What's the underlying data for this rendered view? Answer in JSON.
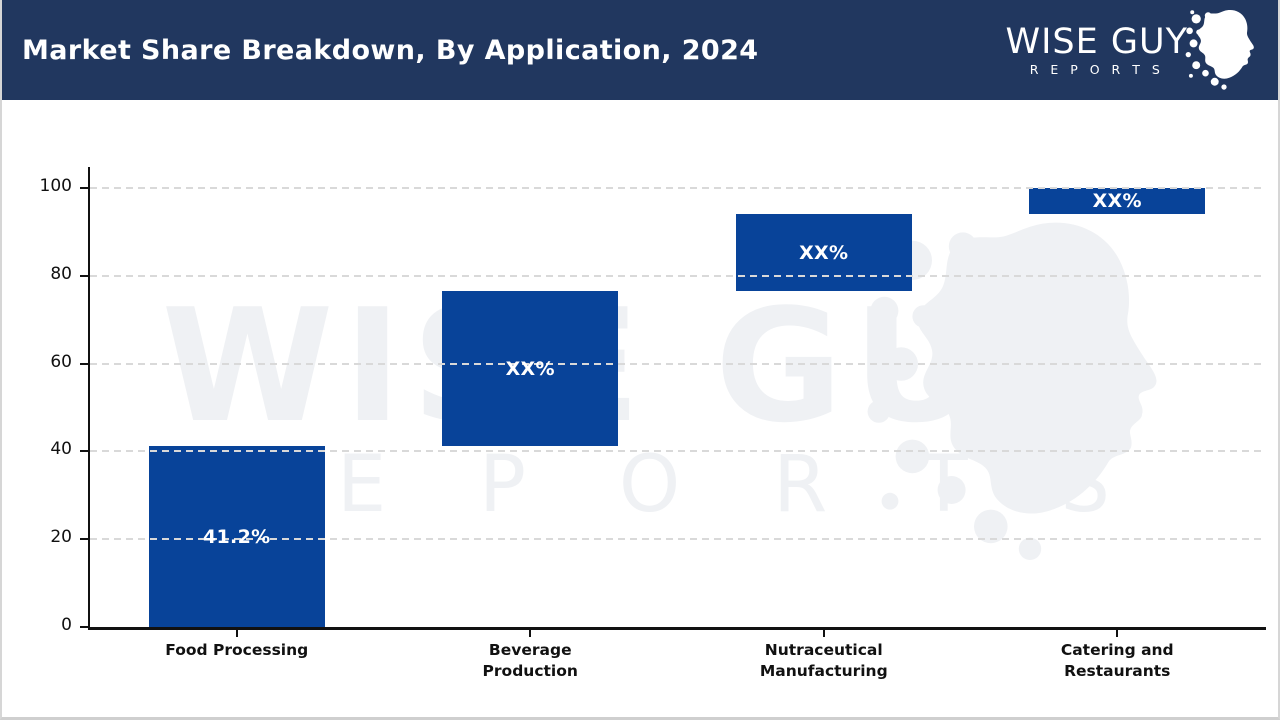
{
  "header": {
    "title": "Market Share Breakdown, By Application, 2024",
    "logo": {
      "name": "WISE GUY",
      "tagline": "R E P O R T S"
    }
  },
  "watermark": {
    "line1": "WISE GUY",
    "line2": "R E P O R T S"
  },
  "colors": {
    "header_bg": "#21375f",
    "bar": "#084399",
    "bar_label": "#ffffff",
    "grid": "#d9d9d9",
    "axis": "#111111",
    "watermark": "#eff1f4"
  },
  "chart_data": {
    "type": "bar",
    "subtype": "waterfall",
    "title": "Market Share Breakdown, By Application, 2024",
    "categories": [
      "Food Processing",
      "Beverage Production",
      "Nutraceutical Manufacturing",
      "Catering and Restaurants"
    ],
    "segments": [
      {
        "category": "Food Processing",
        "lines": [
          "Food Processing"
        ],
        "start": 0,
        "end": 41.2,
        "label": "41.2%"
      },
      {
        "category": "Beverage Production",
        "lines": [
          "Beverage",
          "Production"
        ],
        "start": 41.2,
        "end": 76.5,
        "label": "XX%"
      },
      {
        "category": "Nutraceutical Manufacturing",
        "lines": [
          "Nutraceutical",
          "Manufacturing"
        ],
        "start": 76.5,
        "end": 94.1,
        "label": "XX%"
      },
      {
        "category": "Catering and Restaurants",
        "lines": [
          "Catering and",
          "Restaurants"
        ],
        "start": 94.1,
        "end": 100,
        "label": "XX%"
      }
    ],
    "ylim": [
      0,
      100
    ],
    "yticks": [
      0,
      20,
      40,
      60,
      80,
      100
    ],
    "xlabel": "",
    "ylabel": "",
    "grid": "horizontal-dashed",
    "legend": null
  }
}
